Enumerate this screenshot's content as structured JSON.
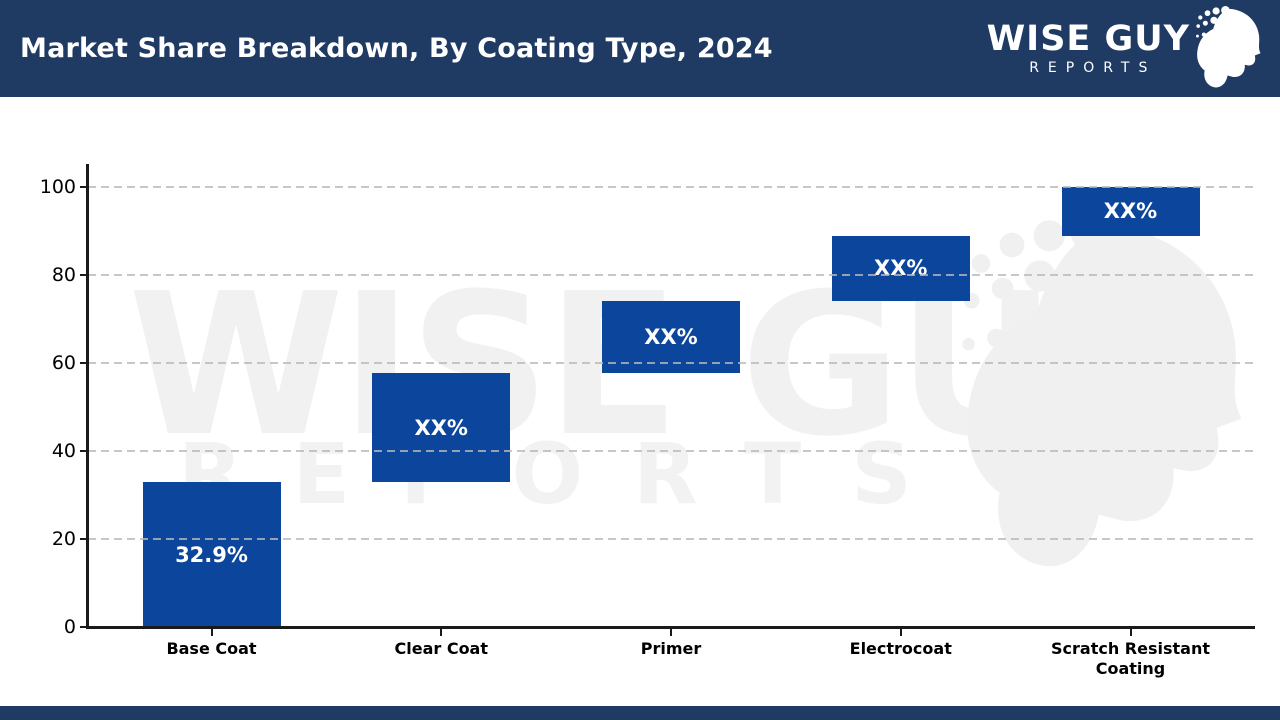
{
  "header": {
    "title": "Market Share Breakdown, By Coating Type, 2024",
    "logo": {
      "line1": "WISE GUY",
      "line2": "REPORTS"
    },
    "bg_color": "#1f3a63"
  },
  "watermark": {
    "line1": "WISE GUY",
    "line2": "REPORTS"
  },
  "chart_data": {
    "type": "bar",
    "subtype": "waterfall",
    "title": "Market Share Breakdown, By Coating Type, 2024",
    "categories": [
      "Base Coat",
      "Clear Coat",
      "Primer",
      "Electrocoat",
      "Scratch Resistant Coating"
    ],
    "segments": [
      {
        "category": "Base Coat",
        "start": 0,
        "end": 32.9,
        "value_label": "32.9%"
      },
      {
        "category": "Clear Coat",
        "start": 32.9,
        "end": 57.7,
        "value_label": "XX%"
      },
      {
        "category": "Primer",
        "start": 57.7,
        "end": 74.1,
        "value_label": "XX%"
      },
      {
        "category": "Electrocoat",
        "start": 74.1,
        "end": 88.9,
        "value_label": "XX%"
      },
      {
        "category": "Scratch Resistant Coating",
        "start": 88.9,
        "end": 100,
        "value_label": "XX%"
      }
    ],
    "y_ticks": [
      "0",
      "20",
      "40",
      "60",
      "80",
      "100"
    ],
    "ylim": [
      0,
      105
    ],
    "ylabel": "",
    "xlabel": "",
    "grid": "horizontal-dashed",
    "legend": "none",
    "bar_color": "#0c459c",
    "axis_color": "#1a1a1a"
  }
}
